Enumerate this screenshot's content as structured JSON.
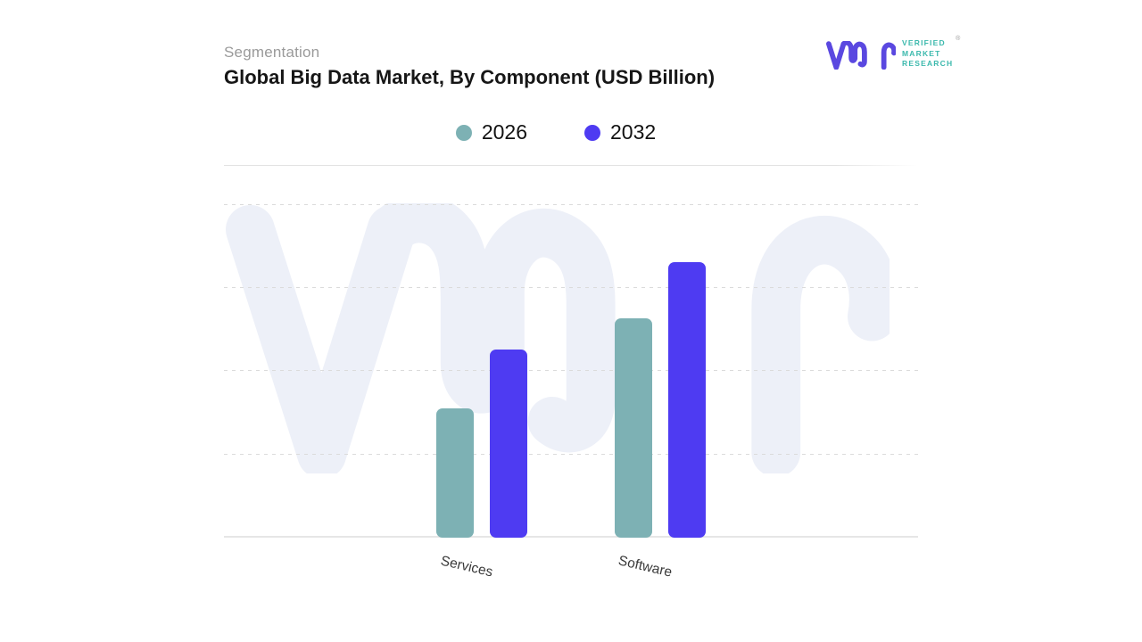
{
  "header": {
    "eyebrow": "Segmentation",
    "title": "Global Big Data Market, By Component (USD Billion)"
  },
  "logo": {
    "monogram": "vmr-monogram",
    "words": [
      "VERIFIED",
      "MARKET",
      "RESEARCH"
    ],
    "registered": "®",
    "monogram_color": "#5A48E0",
    "text_color": "#3CB9AD"
  },
  "chart_data": {
    "type": "bar",
    "title": "Global Big Data Market, By Component (USD Billion)",
    "categories": [
      "Services",
      "Software"
    ],
    "series": [
      {
        "name": "2026",
        "color": "#7DB1B4",
        "values": [
          1.55,
          2.64
        ]
      },
      {
        "name": "2032",
        "color": "#4E3BF2",
        "values": [
          2.26,
          3.31
        ]
      }
    ],
    "xlabel": "",
    "ylabel": "",
    "ylim": [
      0,
      4.48
    ],
    "gridlines": [
      1,
      2,
      3,
      4
    ],
    "grid_style": "dashed",
    "y_axis_tick_labels": "none",
    "legend_position": "top-center",
    "x_tick_rotation_deg": 13
  },
  "watermark": {
    "glyph": "vmr-monogram-watermark",
    "color": "#EDF0F8"
  },
  "colors": {
    "background": "#FFFFFF",
    "grid": "#DBDBDB",
    "baseline": "#E6E6E6",
    "title_text": "#161616",
    "eyebrow_text": "#9A9A9A",
    "axis_label_text": "#3A3A3A"
  }
}
